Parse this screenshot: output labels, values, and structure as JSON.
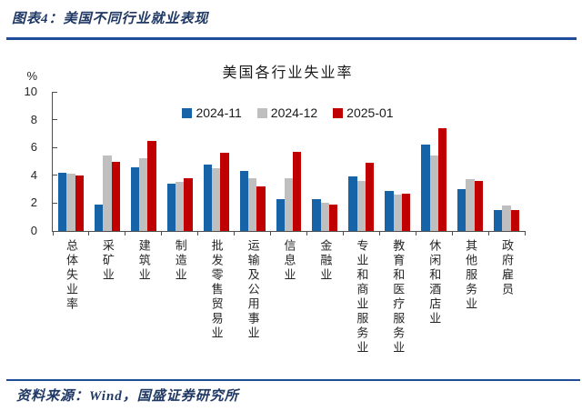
{
  "colors": {
    "accent_navy": "#1f3864",
    "rule_blue": "#1e4d9b",
    "axis_gray": "#4d4d4d",
    "text_dark": "#262626"
  },
  "header": {
    "title": "图表4：美国不同行业就业表现"
  },
  "chart_data": {
    "type": "bar",
    "title": "美国各行业失业率",
    "y_unit": "%",
    "ylim": [
      0,
      10
    ],
    "yticks": [
      0,
      2,
      4,
      6,
      8,
      10
    ],
    "grid": false,
    "legend_position": "top-center",
    "categories": [
      "总体失业率",
      "采矿业",
      "建筑业",
      "制造业",
      "批发零售贸易业",
      "运输及公用事业",
      "信息业",
      "金融业",
      "专业和商业服务业",
      "教育和医疗服务业",
      "休闲和酒店业",
      "其他服务业",
      "政府雇员"
    ],
    "series": [
      {
        "name": "2024-11",
        "color": "#1663a7",
        "values": [
          4.2,
          1.9,
          4.6,
          3.4,
          4.8,
          4.3,
          2.3,
          2.3,
          3.9,
          2.9,
          6.2,
          3.0,
          1.5
        ]
      },
      {
        "name": "2024-12",
        "color": "#bfbfbf",
        "values": [
          4.1,
          5.4,
          5.2,
          3.5,
          4.5,
          3.8,
          3.8,
          2.0,
          3.6,
          2.6,
          5.4,
          3.7,
          1.8
        ]
      },
      {
        "name": "2025-01",
        "color": "#c00000",
        "values": [
          4.0,
          5.0,
          6.5,
          3.8,
          5.6,
          3.2,
          5.7,
          1.9,
          4.9,
          2.7,
          7.4,
          3.6,
          1.5
        ]
      }
    ]
  },
  "footer": {
    "source": "资料来源：Wind，国盛证券研究所"
  }
}
